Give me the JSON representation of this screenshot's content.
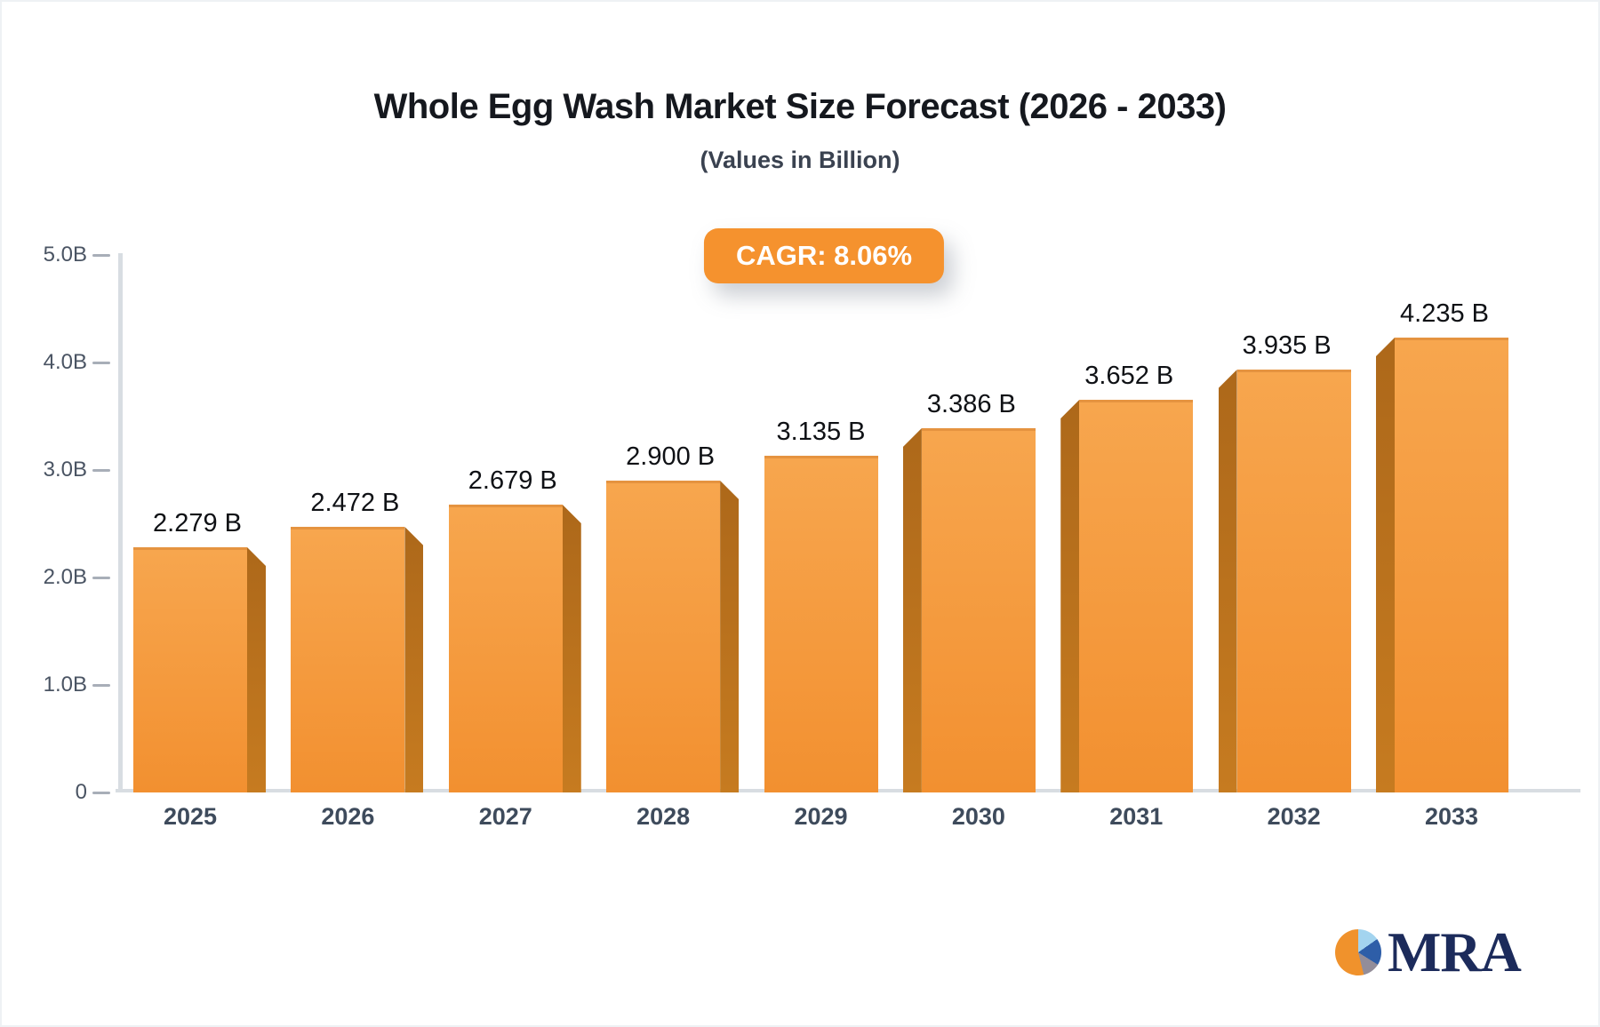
{
  "header": {
    "title": "Whole Egg Wash Market Size Forecast (2026 - 2033)",
    "subtitle": "(Values in Billion)"
  },
  "badge": {
    "label": "CAGR: 8.06%",
    "bg_color": "#f5922e",
    "text_color": "#ffffff"
  },
  "chart_data": {
    "type": "bar",
    "title": "Whole Egg Wash Market Size Forecast (2026 - 2033)",
    "subtitle": "(Values in Billion)",
    "annotation": "CAGR: 8.06%",
    "categories": [
      "2025",
      "2026",
      "2027",
      "2028",
      "2029",
      "2030",
      "2031",
      "2032",
      "2033"
    ],
    "values": [
      2.279,
      2.472,
      2.679,
      2.9,
      3.135,
      3.386,
      3.652,
      3.935,
      4.235
    ],
    "value_labels": [
      "2.279 B",
      "2.472 B",
      "2.679 B",
      "2.900 B",
      "3.135 B",
      "3.386 B",
      "3.652 B",
      "3.935 B",
      "4.235 B"
    ],
    "xlabel": "",
    "ylabel": "",
    "ylim": [
      0,
      5
    ],
    "y_ticks": {
      "values": [
        0,
        1,
        2,
        3,
        4,
        5
      ],
      "labels": [
        "0",
        "1.0B",
        "2.0B",
        "3.0B",
        "4.0B",
        "5.0B"
      ]
    },
    "grid": false,
    "legend": false,
    "style": "3d-perspective-bars",
    "colors": {
      "bar_face_top": "#f7a64e",
      "bar_face_bottom": "#f29030",
      "bar_top_edge": "#e59340",
      "bar_side_dark": "#ad681a",
      "bar_side_light": "#c67b20",
      "axis_line": "#d8dde2",
      "tick_dash": "#a8aeb8",
      "y_label": "#4a5463",
      "x_label": "#3e4b5c",
      "value_label": "#0f1115"
    }
  },
  "logo": {
    "text": "MRA",
    "icon": "pie-chart-icon",
    "colors": {
      "text": "#1c2b5b",
      "pie_orange": "#f0922c",
      "pie_light_blue": "#a3d4ef",
      "pie_dark_blue": "#2e5ea8",
      "pie_gray": "#938d99"
    }
  }
}
